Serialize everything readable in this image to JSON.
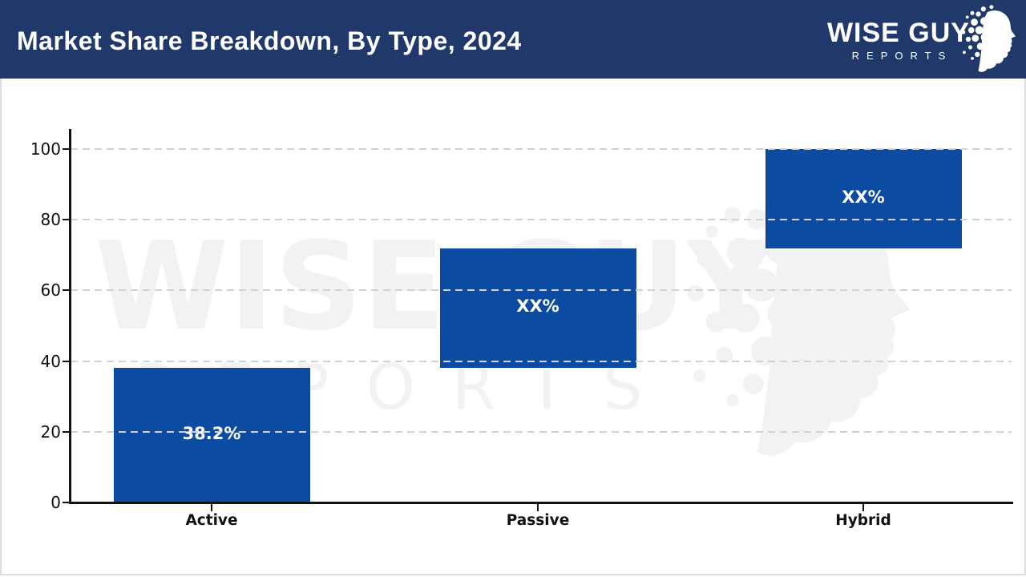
{
  "page": {
    "background": "#ffffff",
    "edge_border_color": "#dcdcdc"
  },
  "header": {
    "background": "#21386A",
    "title": "Market Share Breakdown, By Type, 2024",
    "logo": {
      "line1": "WISE GUY",
      "line2": "REPORTS"
    }
  },
  "watermark": {
    "line1": "WISE GUY",
    "line2": "REPORTS"
  },
  "chart_data": {
    "type": "bar",
    "subtype": "floating stacked segments (waterfall-style market share)",
    "title": "Market Share Breakdown, By Type, 2024",
    "categories": [
      "Active",
      "Passive",
      "Hybrid"
    ],
    "segments": [
      {
        "category": "Active",
        "start": 0,
        "end": 38.2,
        "label": "38.2%"
      },
      {
        "category": "Passive",
        "start": 38.2,
        "end": 71.8,
        "label": "XX%"
      },
      {
        "category": "Hybrid",
        "start": 71.8,
        "end": 100,
        "label": "XX%"
      }
    ],
    "yticks": [
      0,
      20,
      40,
      60,
      80,
      100
    ],
    "ylim": [
      0,
      106
    ],
    "xlabel": "",
    "ylabel": "",
    "grid": "horizontal dashed lines drawn over bars",
    "legend": "none",
    "bar_color": "#0B4BA1",
    "bar_label_color": "#ffffff",
    "axis_color": "#111111",
    "grid_color": "#d2d2d2",
    "tick_label_color": "#111111"
  }
}
